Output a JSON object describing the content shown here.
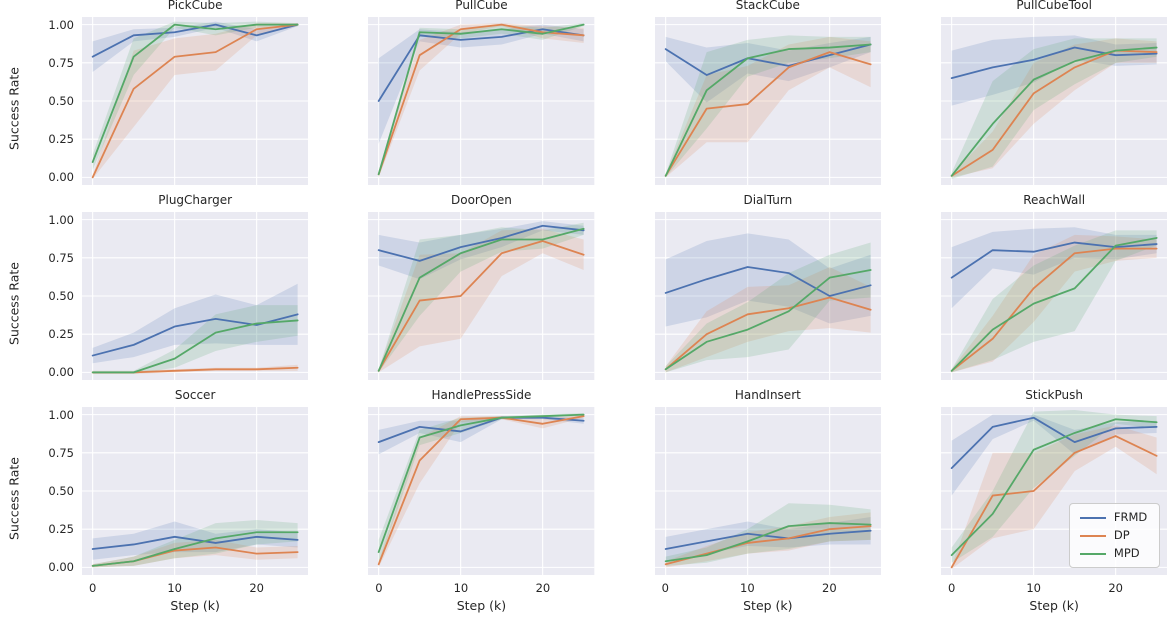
{
  "figure": {
    "xlabel": "Step (k)",
    "ylabel": "Success Rate",
    "x_tick_labels": [
      "0",
      "10",
      "20"
    ],
    "x_tick_values": [
      0,
      10,
      20
    ],
    "y_tick_labels": [
      "0.00",
      "0.25",
      "0.50",
      "0.75",
      "1.00"
    ],
    "y_tick_values": [
      0,
      0.25,
      0.5,
      0.75,
      1.0
    ],
    "plot_background": "#eaeaf2",
    "grid_color": "#ffffff",
    "text_color": "#262626"
  },
  "legend": {
    "location": "lower-right-of-last-subplot",
    "entries": [
      {
        "label": "FRMD",
        "color": "#4c72b0"
      },
      {
        "label": "DP",
        "color": "#dd8452"
      },
      {
        "label": "MPD",
        "color": "#55a868"
      }
    ]
  },
  "chart_data": {
    "type": "line",
    "x": [
      0,
      5,
      10,
      15,
      20,
      25
    ],
    "xlim": [
      -1.3,
      26.3
    ],
    "ylim": [
      -0.05,
      1.05
    ],
    "grid": true,
    "band_note": "band = shaded confidence half-width around mean",
    "series_names": [
      "FRMD",
      "DP",
      "MPD"
    ],
    "series_colors": [
      "#4c72b0",
      "#dd8452",
      "#55a868"
    ],
    "subplots": [
      {
        "title": "PickCube",
        "series": [
          {
            "name": "FRMD",
            "color": "#4c72b0",
            "values": [
              0.79,
              0.93,
              0.95,
              1.0,
              0.93,
              1.0
            ],
            "band": [
              0.1,
              0.04,
              0.03,
              0.02,
              0.04,
              0.01
            ]
          },
          {
            "name": "DP",
            "color": "#dd8452",
            "values": [
              0.0,
              0.58,
              0.79,
              0.82,
              0.97,
              1.0
            ],
            "band": [
              0.01,
              0.25,
              0.12,
              0.12,
              0.04,
              0.01
            ]
          },
          {
            "name": "MPD",
            "color": "#55a868",
            "values": [
              0.1,
              0.79,
              1.0,
              0.97,
              1.0,
              1.0
            ],
            "band": [
              0.05,
              0.12,
              0.02,
              0.04,
              0.02,
              0.01
            ]
          }
        ]
      },
      {
        "title": "PullCube",
        "series": [
          {
            "name": "FRMD",
            "color": "#4c72b0",
            "values": [
              0.5,
              0.93,
              0.9,
              0.92,
              0.97,
              0.93
            ],
            "band": [
              0.28,
              0.04,
              0.05,
              0.05,
              0.03,
              0.04
            ]
          },
          {
            "name": "DP",
            "color": "#dd8452",
            "values": [
              0.02,
              0.8,
              0.97,
              1.0,
              0.95,
              0.93
            ],
            "band": [
              0.02,
              0.1,
              0.03,
              0.01,
              0.04,
              0.05
            ]
          },
          {
            "name": "MPD",
            "color": "#55a868",
            "values": [
              0.02,
              0.95,
              0.94,
              0.97,
              0.94,
              1.0
            ],
            "band": [
              0.02,
              0.03,
              0.03,
              0.03,
              0.04,
              0.01
            ]
          }
        ]
      },
      {
        "title": "StackCube",
        "series": [
          {
            "name": "FRMD",
            "color": "#4c72b0",
            "values": [
              0.84,
              0.67,
              0.78,
              0.73,
              0.8,
              0.87
            ],
            "band": [
              0.08,
              0.18,
              0.1,
              0.1,
              0.08,
              0.05
            ]
          },
          {
            "name": "DP",
            "color": "#dd8452",
            "values": [
              0.01,
              0.45,
              0.48,
              0.72,
              0.82,
              0.74
            ],
            "band": [
              0.01,
              0.22,
              0.25,
              0.15,
              0.1,
              0.15
            ]
          },
          {
            "name": "MPD",
            "color": "#55a868",
            "values": [
              0.01,
              0.57,
              0.78,
              0.84,
              0.85,
              0.87
            ],
            "band": [
              0.01,
              0.25,
              0.12,
              0.09,
              0.07,
              0.05
            ]
          }
        ]
      },
      {
        "title": "PullCubeTool",
        "series": [
          {
            "name": "FRMD",
            "color": "#4c72b0",
            "values": [
              0.65,
              0.72,
              0.77,
              0.85,
              0.8,
              0.81
            ],
            "band": [
              0.18,
              0.18,
              0.15,
              0.08,
              0.07,
              0.07
            ]
          },
          {
            "name": "DP",
            "color": "#dd8452",
            "values": [
              0.01,
              0.18,
              0.55,
              0.72,
              0.83,
              0.82
            ],
            "band": [
              0.01,
              0.12,
              0.2,
              0.15,
              0.08,
              0.07
            ]
          },
          {
            "name": "MPD",
            "color": "#55a868",
            "values": [
              0.01,
              0.35,
              0.64,
              0.76,
              0.83,
              0.85
            ],
            "band": [
              0.02,
              0.28,
              0.2,
              0.15,
              0.08,
              0.06
            ]
          }
        ]
      },
      {
        "title": "PlugCharger",
        "series": [
          {
            "name": "FRMD",
            "color": "#4c72b0",
            "values": [
              0.11,
              0.18,
              0.3,
              0.35,
              0.31,
              0.38
            ],
            "band": [
              0.05,
              0.08,
              0.12,
              0.16,
              0.13,
              0.2
            ]
          },
          {
            "name": "DP",
            "color": "#dd8452",
            "values": [
              0.0,
              0.0,
              0.01,
              0.02,
              0.02,
              0.03
            ],
            "band": [
              0.01,
              0.01,
              0.01,
              0.01,
              0.01,
              0.02
            ]
          },
          {
            "name": "MPD",
            "color": "#55a868",
            "values": [
              0.0,
              0.0,
              0.09,
              0.26,
              0.32,
              0.34
            ],
            "band": [
              0.01,
              0.01,
              0.06,
              0.12,
              0.12,
              0.1
            ]
          }
        ]
      },
      {
        "title": "DoorOpen",
        "series": [
          {
            "name": "FRMD",
            "color": "#4c72b0",
            "values": [
              0.8,
              0.73,
              0.82,
              0.88,
              0.96,
              0.93
            ],
            "band": [
              0.1,
              0.12,
              0.08,
              0.06,
              0.03,
              0.03
            ]
          },
          {
            "name": "DP",
            "color": "#dd8452",
            "values": [
              0.01,
              0.47,
              0.5,
              0.78,
              0.86,
              0.77
            ],
            "band": [
              0.01,
              0.3,
              0.28,
              0.15,
              0.08,
              0.1
            ]
          },
          {
            "name": "MPD",
            "color": "#55a868",
            "values": [
              0.01,
              0.62,
              0.78,
              0.87,
              0.87,
              0.94
            ],
            "band": [
              0.01,
              0.25,
              0.12,
              0.08,
              0.06,
              0.04
            ]
          }
        ]
      },
      {
        "title": "DialTurn",
        "series": [
          {
            "name": "FRMD",
            "color": "#4c72b0",
            "values": [
              0.52,
              0.61,
              0.69,
              0.65,
              0.5,
              0.57
            ],
            "band": [
              0.22,
              0.25,
              0.22,
              0.22,
              0.18,
              0.2
            ]
          },
          {
            "name": "DP",
            "color": "#dd8452",
            "values": [
              0.02,
              0.25,
              0.38,
              0.42,
              0.49,
              0.41
            ],
            "band": [
              0.02,
              0.15,
              0.18,
              0.15,
              0.2,
              0.15
            ]
          },
          {
            "name": "MPD",
            "color": "#55a868",
            "values": [
              0.02,
              0.2,
              0.28,
              0.4,
              0.62,
              0.67
            ],
            "band": [
              0.02,
              0.12,
              0.18,
              0.25,
              0.15,
              0.18
            ]
          }
        ]
      },
      {
        "title": "ReachWall",
        "series": [
          {
            "name": "FRMD",
            "color": "#4c72b0",
            "values": [
              0.62,
              0.8,
              0.79,
              0.85,
              0.82,
              0.84
            ],
            "band": [
              0.2,
              0.12,
              0.15,
              0.1,
              0.08,
              0.06
            ]
          },
          {
            "name": "DP",
            "color": "#dd8452",
            "values": [
              0.01,
              0.22,
              0.55,
              0.78,
              0.81,
              0.81
            ],
            "band": [
              0.01,
              0.15,
              0.22,
              0.12,
              0.08,
              0.06
            ]
          },
          {
            "name": "MPD",
            "color": "#55a868",
            "values": [
              0.01,
              0.28,
              0.45,
              0.55,
              0.83,
              0.88
            ],
            "band": [
              0.01,
              0.2,
              0.25,
              0.28,
              0.1,
              0.05
            ]
          }
        ]
      },
      {
        "title": "Soccer",
        "series": [
          {
            "name": "FRMD",
            "color": "#4c72b0",
            "values": [
              0.12,
              0.15,
              0.2,
              0.16,
              0.2,
              0.18
            ],
            "band": [
              0.07,
              0.07,
              0.1,
              0.06,
              0.05,
              0.05
            ]
          },
          {
            "name": "DP",
            "color": "#dd8452",
            "values": [
              0.01,
              0.04,
              0.11,
              0.13,
              0.09,
              0.1
            ],
            "band": [
              0.01,
              0.03,
              0.05,
              0.05,
              0.04,
              0.04
            ]
          },
          {
            "name": "MPD",
            "color": "#55a868",
            "values": [
              0.01,
              0.04,
              0.12,
              0.19,
              0.23,
              0.23
            ],
            "band": [
              0.01,
              0.03,
              0.06,
              0.1,
              0.08,
              0.06
            ]
          }
        ]
      },
      {
        "title": "HandlePressSide",
        "series": [
          {
            "name": "FRMD",
            "color": "#4c72b0",
            "values": [
              0.82,
              0.92,
              0.89,
              0.98,
              0.98,
              0.96
            ],
            "band": [
              0.08,
              0.04,
              0.07,
              0.01,
              0.01,
              0.02
            ]
          },
          {
            "name": "DP",
            "color": "#dd8452",
            "values": [
              0.02,
              0.7,
              0.97,
              0.98,
              0.94,
              0.99
            ],
            "band": [
              0.02,
              0.15,
              0.02,
              0.01,
              0.03,
              0.01
            ]
          },
          {
            "name": "MPD",
            "color": "#55a868",
            "values": [
              0.1,
              0.85,
              0.93,
              0.98,
              0.99,
              1.0
            ],
            "band": [
              0.08,
              0.05,
              0.05,
              0.01,
              0.01,
              0.01
            ]
          }
        ]
      },
      {
        "title": "HandInsert",
        "series": [
          {
            "name": "FRMD",
            "color": "#4c72b0",
            "values": [
              0.12,
              0.17,
              0.22,
              0.19,
              0.22,
              0.24
            ],
            "band": [
              0.08,
              0.08,
              0.08,
              0.06,
              0.07,
              0.09
            ]
          },
          {
            "name": "DP",
            "color": "#dd8452",
            "values": [
              0.02,
              0.09,
              0.16,
              0.19,
              0.25,
              0.27
            ],
            "band": [
              0.02,
              0.05,
              0.07,
              0.08,
              0.08,
              0.09
            ]
          },
          {
            "name": "MPD",
            "color": "#55a868",
            "values": [
              0.04,
              0.08,
              0.17,
              0.27,
              0.29,
              0.28
            ],
            "band": [
              0.03,
              0.05,
              0.08,
              0.15,
              0.12,
              0.1
            ]
          }
        ]
      },
      {
        "title": "StickPush",
        "series": [
          {
            "name": "FRMD",
            "color": "#4c72b0",
            "values": [
              0.65,
              0.92,
              0.98,
              0.82,
              0.91,
              0.92
            ],
            "band": [
              0.18,
              0.08,
              0.02,
              0.08,
              0.04,
              0.04
            ]
          },
          {
            "name": "DP",
            "color": "#dd8452",
            "values": [
              0.0,
              0.47,
              0.5,
              0.75,
              0.86,
              0.73
            ],
            "band": [
              0.01,
              0.28,
              0.25,
              0.12,
              0.07,
              0.12
            ]
          },
          {
            "name": "MPD",
            "color": "#55a868",
            "values": [
              0.08,
              0.35,
              0.77,
              0.88,
              0.97,
              0.95
            ],
            "band": [
              0.05,
              0.15,
              0.25,
              0.15,
              0.03,
              0.04
            ]
          }
        ]
      }
    ]
  }
}
